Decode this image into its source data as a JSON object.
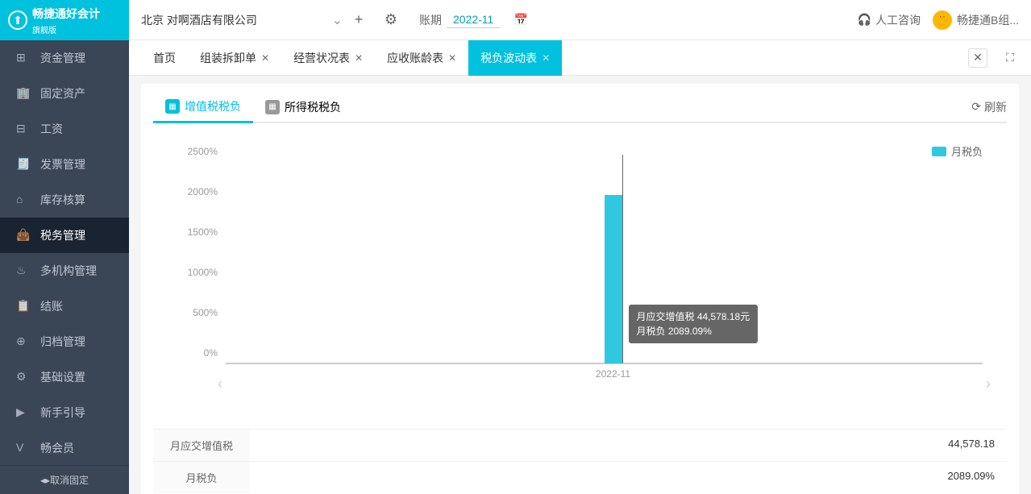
{
  "logo": {
    "text": "畅捷通好会计",
    "sub": "旗舰版"
  },
  "sidebar": {
    "items": [
      {
        "label": "资金管理",
        "icon": "wallet"
      },
      {
        "label": "固定资产",
        "icon": "building"
      },
      {
        "label": "工资",
        "icon": "salary"
      },
      {
        "label": "发票管理",
        "icon": "invoice"
      },
      {
        "label": "库存核算",
        "icon": "inventory"
      },
      {
        "label": "税务管理",
        "icon": "tax"
      },
      {
        "label": "多机构管理",
        "icon": "org"
      },
      {
        "label": "结账",
        "icon": "close-books"
      },
      {
        "label": "归档管理",
        "icon": "archive"
      },
      {
        "label": "基础设置",
        "icon": "settings"
      },
      {
        "label": "新手引导",
        "icon": "guide"
      },
      {
        "label": "畅会员",
        "icon": "vip"
      }
    ],
    "active_index": 5,
    "collapse_label": "取消固定"
  },
  "topbar": {
    "company_name": "北京 对啊酒店有限公司",
    "period_label": "账期",
    "period_value": "2022-11",
    "support_label": "人工咨询",
    "user_name": "畅捷通B组..."
  },
  "tabs": {
    "list": [
      {
        "label": "首页",
        "closable": false
      },
      {
        "label": "组装拆卸单",
        "closable": true
      },
      {
        "label": "经营状况表",
        "closable": true
      },
      {
        "label": "应收账龄表",
        "closable": true
      },
      {
        "label": "税负波动表",
        "closable": true
      }
    ],
    "active_index": 4
  },
  "subtabs": {
    "list": [
      {
        "label": "增值税税负"
      },
      {
        "label": "所得税税负"
      }
    ],
    "active_index": 0,
    "refresh_label": "刷新"
  },
  "chart": {
    "legend_label": "月税负",
    "y_ticks": [
      "0%",
      "500%",
      "1000%",
      "1500%",
      "2000%",
      "2500%"
    ],
    "y_max": 2500,
    "category": "2022-11",
    "value": 2089.09,
    "bar_color": "#30c8e0",
    "tooltip_line1": "月应交增值税 44,578.18元",
    "tooltip_line2": "月税负 2089.09%"
  },
  "table": {
    "rows": [
      {
        "label": "月应交增值税",
        "value": "44,578.18"
      },
      {
        "label": "月税负",
        "value": "2089.09%"
      }
    ]
  }
}
